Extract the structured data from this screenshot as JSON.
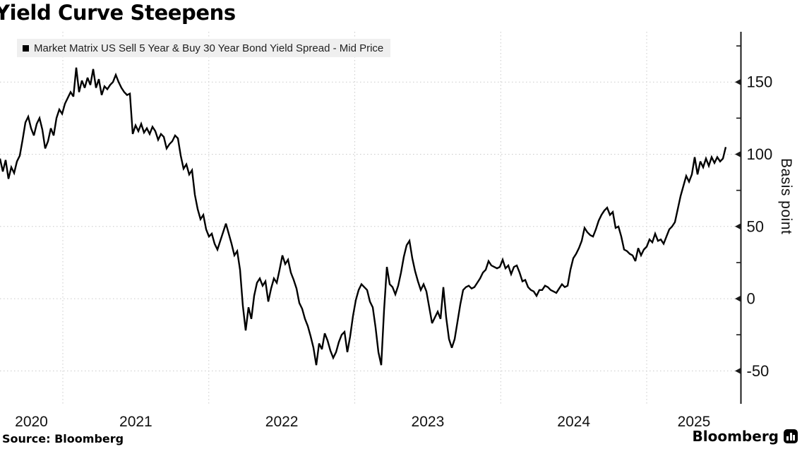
{
  "title": "Yield Curve Steepens",
  "legend": {
    "label": "Market Matrix US Sell 5 Year & Buy 30 Year Bond Yield Spread - Mid Price",
    "swatch_color": "#000000"
  },
  "footer": {
    "source": "Source: Bloomberg",
    "brand": "Bloomberg"
  },
  "colors": {
    "line": "#000000",
    "grid": "#c9c9c9",
    "axis": "#1a1a1a",
    "text": "#111111",
    "legend_bg": "#efefef"
  },
  "chart_data": {
    "type": "line",
    "title": "Yield Curve Steepens",
    "series_name": "Market Matrix US Sell 5 Year & Buy 30 Year Bond Yield Spread - Mid Price",
    "ylabel": "Basis point",
    "grid": true,
    "legend_position": "top-left",
    "x_axis_years": [
      2020,
      2021,
      2022,
      2023,
      2024,
      2025
    ],
    "x_gridline_years": [
      2021,
      2022,
      2023,
      2024,
      2025
    ],
    "y_ticks": [
      150,
      100,
      50,
      0,
      -50
    ],
    "y_minor_ticks": [
      175,
      125,
      75,
      25,
      -25
    ],
    "x_axis_range": [
      2020.5695,
      2025.648
    ],
    "y_axis_range": [
      -72.8,
      184.8
    ],
    "x_start": 2020.5695,
    "x_step": 0.019347,
    "unit": "basis points",
    "values": [
      97,
      88,
      96,
      83,
      91,
      87,
      95,
      99,
      110,
      122,
      126,
      118,
      113,
      121,
      125,
      117,
      104,
      109,
      118,
      113,
      125,
      131,
      128,
      135,
      139,
      143,
      140,
      160,
      143,
      151,
      146,
      153,
      148,
      159,
      146,
      152,
      141,
      147,
      145,
      148,
      150,
      155,
      150,
      146,
      143,
      141,
      142,
      114,
      120,
      116,
      121,
      115,
      118,
      114,
      119,
      116,
      110,
      114,
      112,
      104,
      107,
      109,
      113,
      111,
      99,
      90,
      93,
      86,
      89,
      72,
      62,
      55,
      58,
      48,
      43,
      45,
      38,
      34,
      40,
      46,
      52,
      45,
      38,
      30,
      33,
      20,
      -5,
      -22,
      -6,
      -14,
      2,
      11,
      14,
      9,
      12,
      -2,
      7,
      14,
      11,
      20,
      30,
      24,
      27,
      18,
      13,
      7,
      -3,
      -7,
      -14,
      -19,
      -26,
      -34,
      -46,
      -31,
      -35,
      -24,
      -29,
      -36,
      -41,
      -37,
      -30,
      -25,
      -23,
      -37,
      -26,
      -12,
      -1,
      6,
      10,
      8,
      6,
      -2,
      -6,
      -20,
      -37,
      -46,
      -8,
      22,
      10,
      8,
      3,
      9,
      18,
      29,
      37,
      40,
      28,
      19,
      12,
      6,
      10,
      5,
      -6,
      -17,
      -13,
      -9,
      -14,
      8,
      -13,
      -28,
      -34,
      -28,
      -16,
      -4,
      6,
      8,
      9,
      7,
      8,
      11,
      14,
      18,
      20,
      26,
      23,
      22,
      21,
      22,
      27,
      21,
      23,
      17,
      22,
      23,
      18,
      12,
      13,
      8,
      6,
      5,
      2,
      6,
      6,
      9,
      8,
      6,
      5,
      4,
      7,
      10,
      8,
      9,
      20,
      28,
      31,
      35,
      40,
      49,
      46,
      44,
      43,
      48,
      54,
      58,
      61,
      63,
      58,
      60,
      49,
      50,
      43,
      34,
      33,
      31,
      30,
      26,
      35,
      30,
      34,
      36,
      41,
      39,
      45,
      40,
      41,
      38,
      43,
      48,
      50,
      53,
      62,
      71,
      78,
      85,
      81,
      86,
      98,
      86,
      95,
      91,
      97,
      92,
      98,
      94,
      98,
      95,
      97,
      105
    ]
  }
}
